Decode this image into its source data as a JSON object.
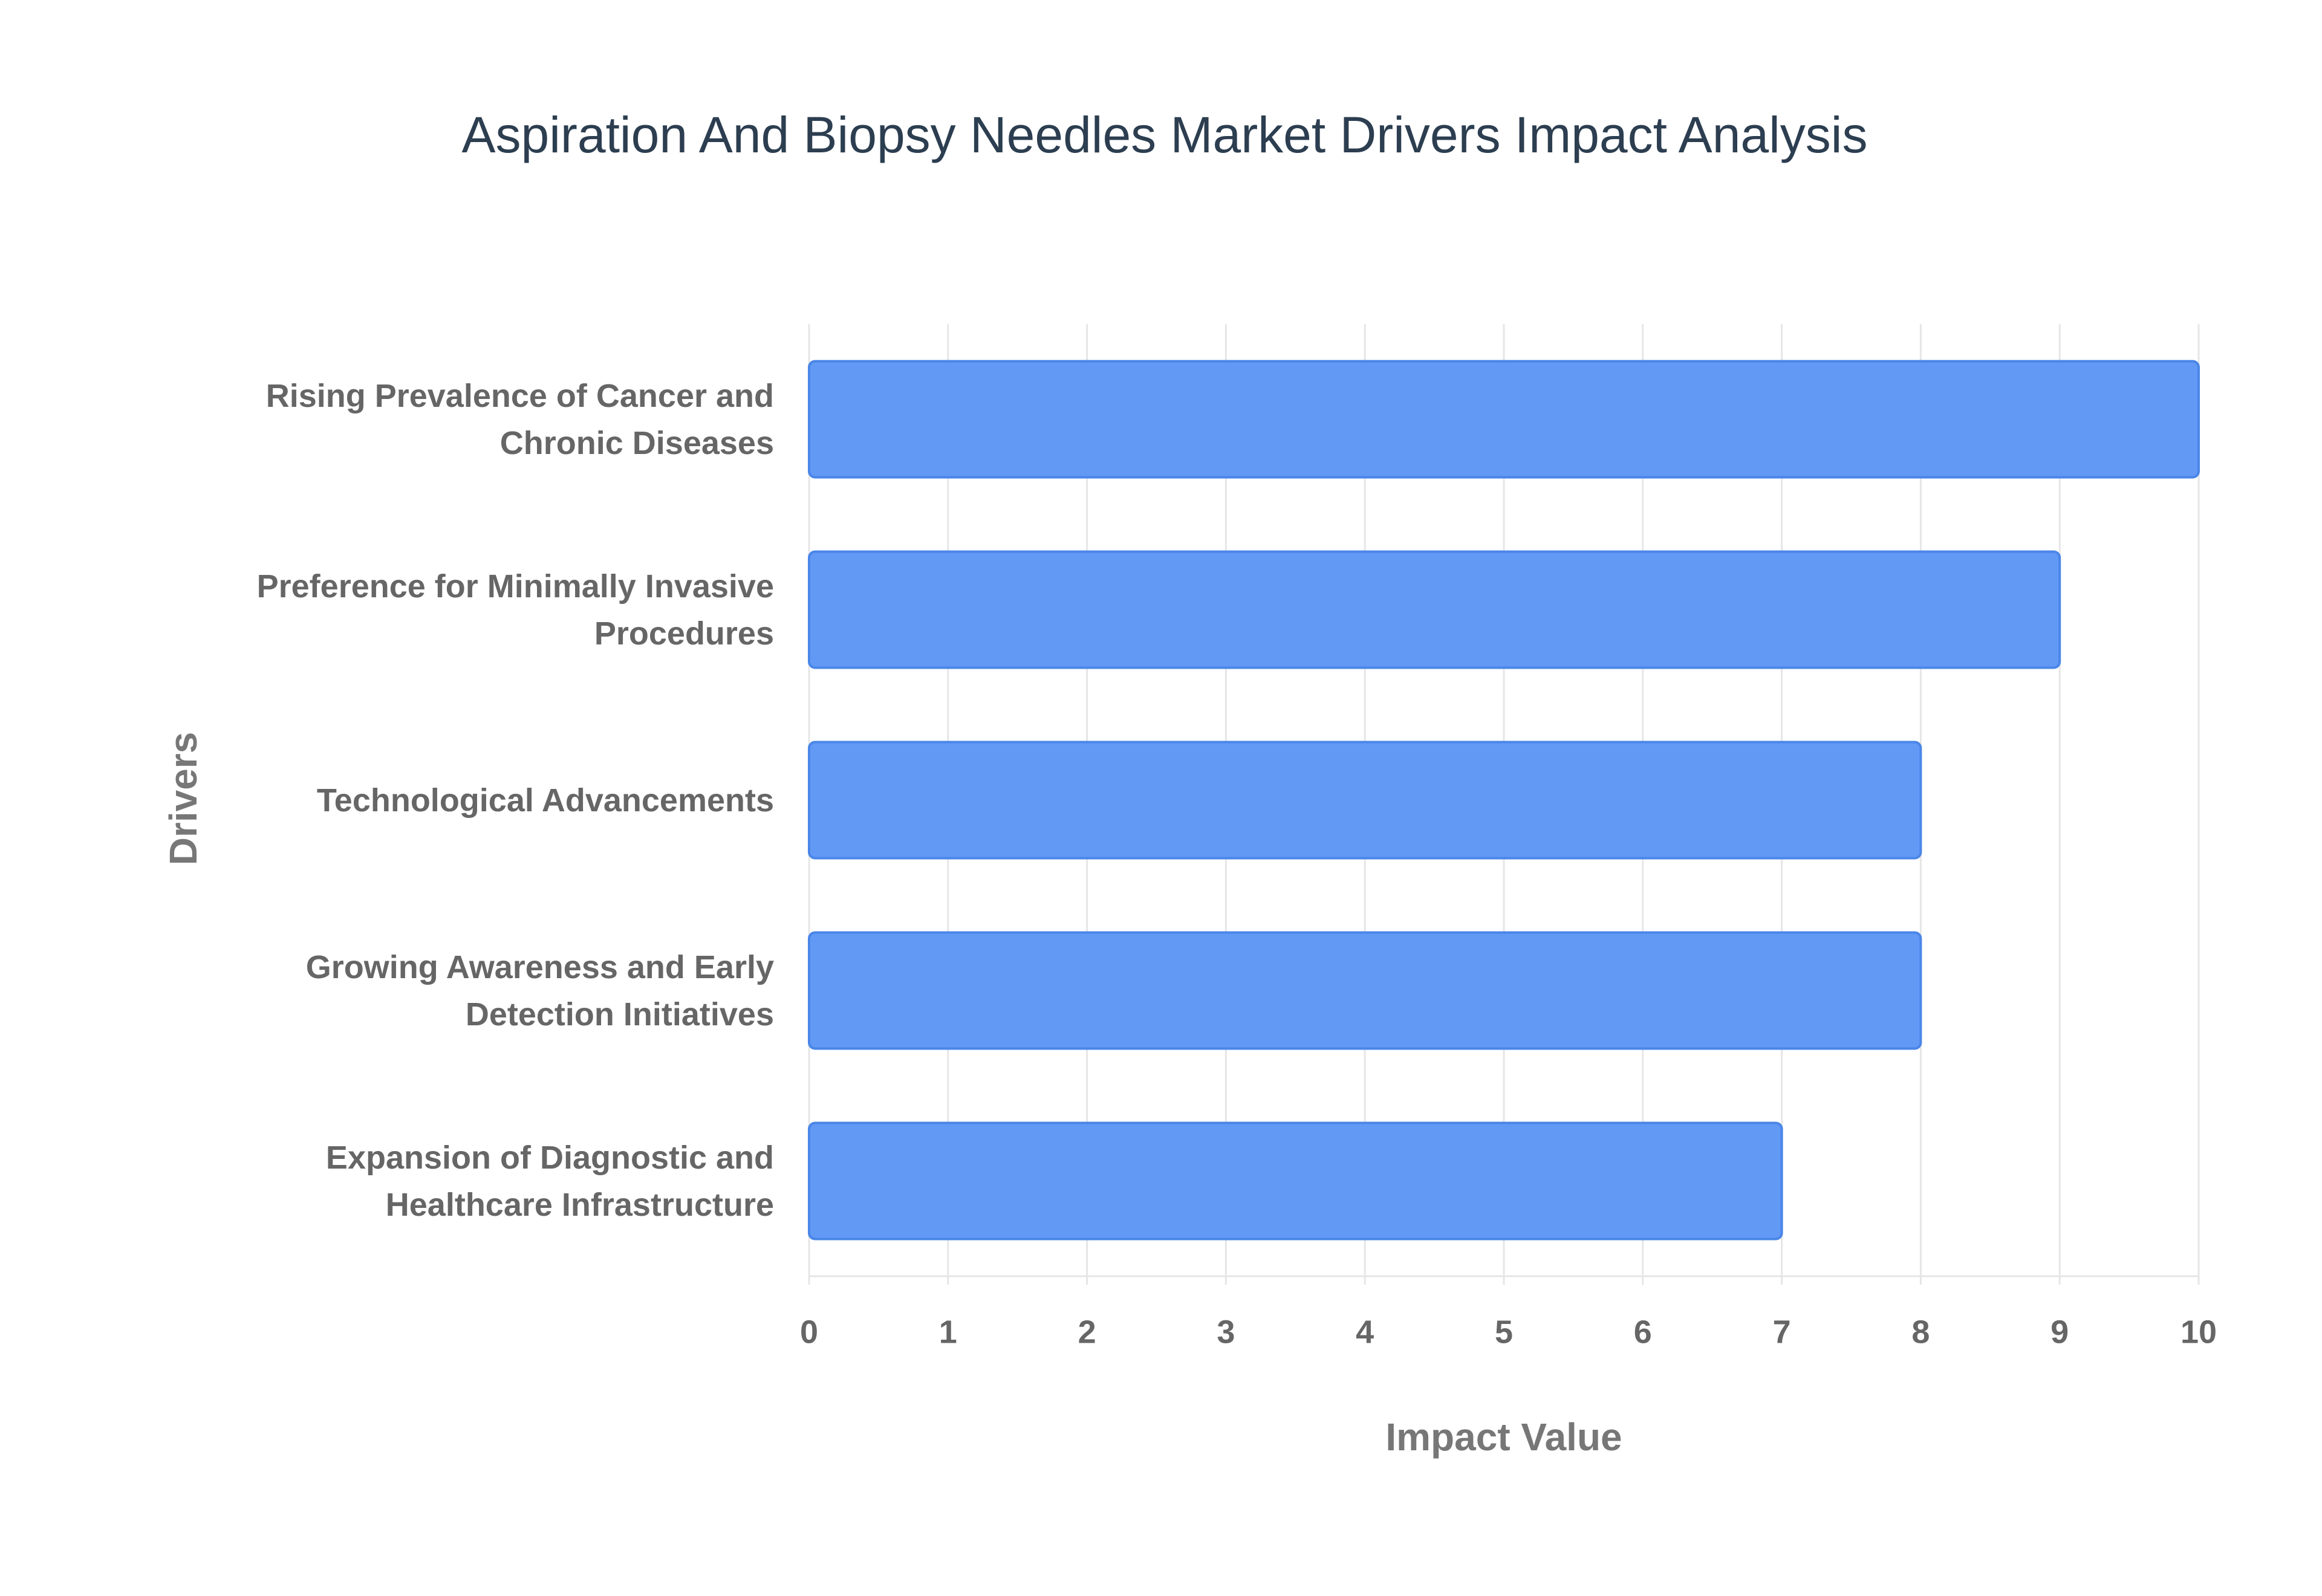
{
  "chart_data": {
    "type": "bar",
    "orientation": "horizontal",
    "title": "Aspiration And Biopsy Needles Market Drivers Impact Analysis",
    "x_label": "Impact Value",
    "y_label": "Drivers",
    "categories": [
      "Rising Prevalence of Cancer and Chronic Diseases",
      "Preference for Minimally Invasive Procedures",
      "Technological Advancements",
      "Growing Awareness and Early Detection Initiatives",
      "Expansion of Diagnostic and Healthcare Infrastructure"
    ],
    "values": [
      10,
      9,
      8,
      8,
      7
    ],
    "color": "#6299f5",
    "edge_color": "#4a86e8",
    "xlim": [
      0,
      10
    ],
    "xticks": [
      0,
      1,
      2,
      3,
      4,
      5,
      6,
      7,
      8,
      9,
      10
    ],
    "grid": true
  }
}
